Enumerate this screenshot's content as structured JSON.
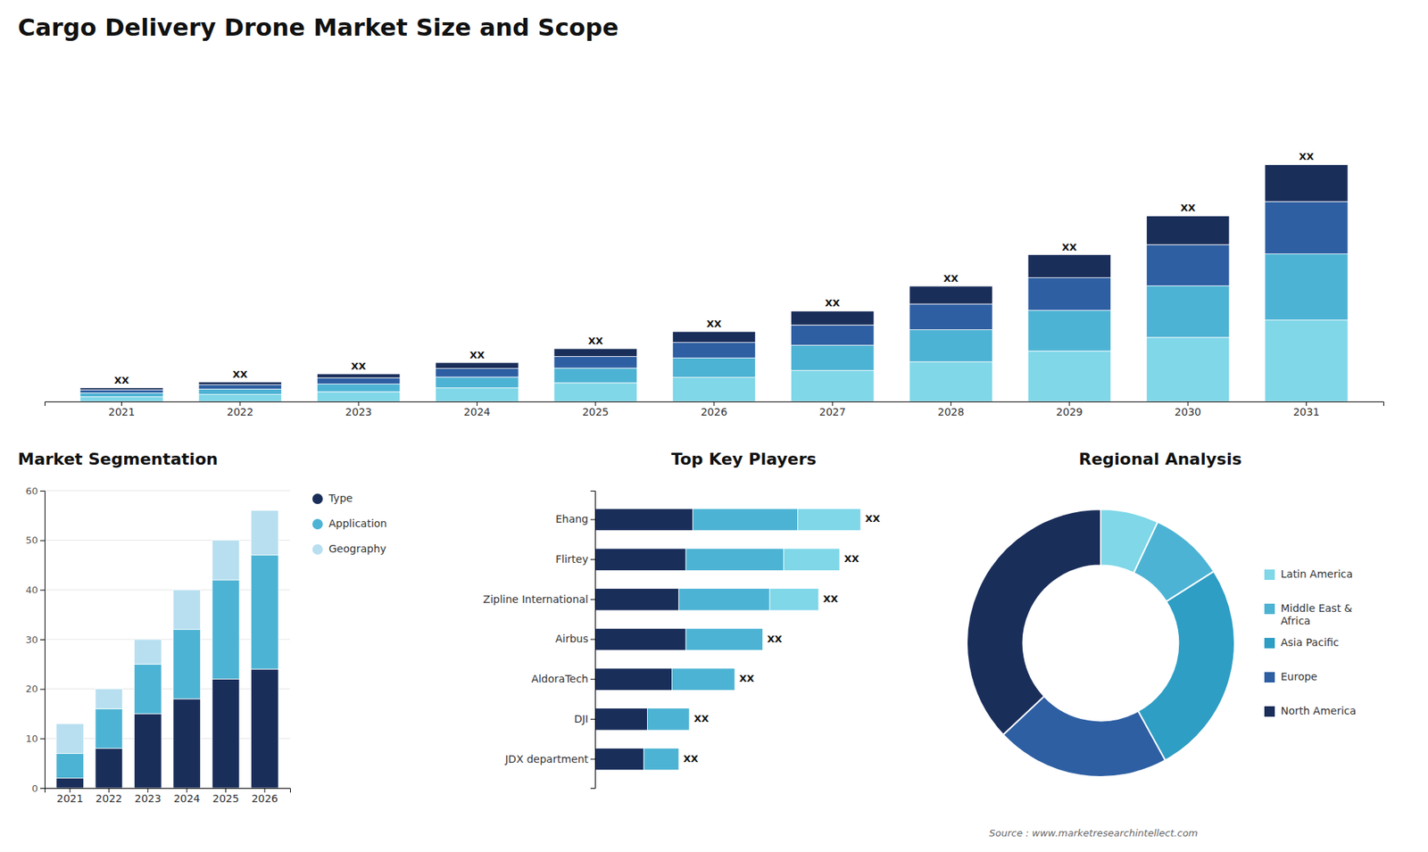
{
  "chart_data": [
    {
      "type": "bar",
      "title": "Cargo Delivery Drone Market Size and Scope",
      "stacked": true,
      "categories": [
        "2021",
        "2022",
        "2023",
        "2024",
        "2025",
        "2026",
        "2027",
        "2028",
        "2029",
        "2030",
        "2031"
      ],
      "series": [
        {
          "color": "#7fd7e8",
          "values": [
            1.2,
            1.8,
            2.5,
            3.5,
            4.8,
            6.2,
            8.0,
            10.2,
            13.0,
            16.5,
            21.0
          ]
        },
        {
          "color": "#4db3d4",
          "values": [
            1.0,
            1.4,
            2.0,
            2.8,
            3.8,
            5.0,
            6.5,
            8.3,
            10.5,
            13.3,
            17.0
          ]
        },
        {
          "color": "#2e5fa3",
          "values": [
            0.8,
            1.1,
            1.6,
            2.2,
            3.0,
            4.0,
            5.2,
            6.6,
            8.4,
            10.6,
            13.5
          ]
        },
        {
          "color": "#1a2e5a",
          "values": [
            0.5,
            0.7,
            1.0,
            1.5,
            2.0,
            2.8,
            3.6,
            4.6,
            5.9,
            7.4,
            9.5
          ]
        }
      ],
      "value_labels": [
        "XX",
        "XX",
        "XX",
        "XX",
        "XX",
        "XX",
        "XX",
        "XX",
        "XX",
        "XX",
        "XX"
      ],
      "ylim": [
        0,
        82.35
      ],
      "tick_labels": "x",
      "grid": false
    },
    {
      "type": "bar",
      "title": "Market Segmentation",
      "stacked": true,
      "categories": [
        "2021",
        "2022",
        "2023",
        "2024",
        "2025",
        "2026"
      ],
      "series": [
        {
          "name": "Type",
          "color": "#1a2e5a",
          "values": [
            2,
            8,
            15,
            18,
            22,
            24
          ]
        },
        {
          "name": "Application",
          "color": "#4db3d4",
          "values": [
            5,
            8,
            10,
            14,
            20,
            23
          ]
        },
        {
          "name": "Geography",
          "color": "#b8dff0",
          "values": [
            6,
            4,
            5,
            8,
            8,
            9
          ]
        }
      ],
      "ylim": [
        0,
        60
      ],
      "yticks": [
        0,
        10,
        20,
        30,
        40,
        50,
        60
      ],
      "grid": true,
      "legend": "right"
    },
    {
      "type": "bar",
      "title": "Top Key Players",
      "orientation": "horizontal",
      "stacked": true,
      "categories": [
        "Ehang",
        "Flirtey",
        "Zipline International",
        "Airbus",
        "AldoraTech",
        "DJI",
        "JDX department"
      ],
      "series": [
        {
          "color": "#1a2e5a",
          "values": [
            0.28,
            0.26,
            0.24,
            0.26,
            0.22,
            0.15,
            0.14
          ]
        },
        {
          "color": "#4db3d4",
          "values": [
            0.3,
            0.28,
            0.26,
            0.22,
            0.18,
            0.12,
            0.1
          ]
        },
        {
          "color": "#7fd7e8",
          "values": [
            0.18,
            0.16,
            0.14,
            null,
            null,
            null,
            null
          ]
        }
      ],
      "value_labels": [
        "XX",
        "XX",
        "XX",
        "XX",
        "XX",
        "XX",
        "XX"
      ],
      "xlim": [
        0,
        1.0
      ],
      "tick_labels": "y",
      "grid": false
    },
    {
      "type": "pie",
      "title": "Regional Analysis",
      "categories": [
        "Latin America",
        "Middle East &\nAfrica",
        "Asia Pacific",
        "Europe",
        "North America"
      ],
      "values": [
        0.07,
        0.09,
        0.26,
        0.21,
        0.37
      ],
      "colors": [
        "#7fd7e8",
        "#4db3d4",
        "#2e9ec4",
        "#2e5fa3",
        "#1a2e5a"
      ],
      "legend": "right",
      "annotations": [
        "Source : www.marketresearchintellect.com"
      ]
    }
  ]
}
